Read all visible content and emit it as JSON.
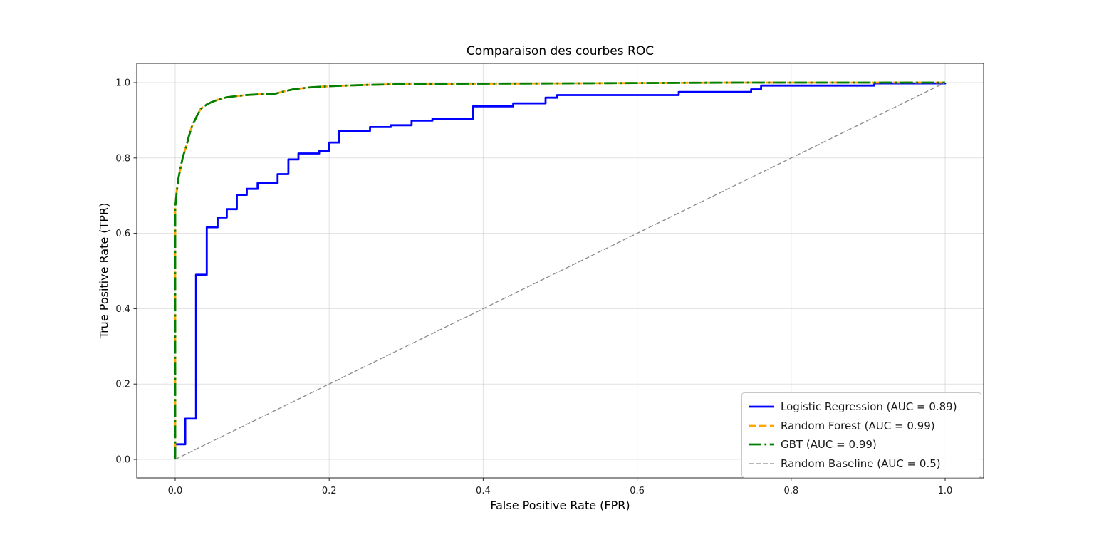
{
  "figure": {
    "title": "Comparaison des courbes ROC",
    "xlabel": "False Positive Rate (FPR)",
    "ylabel": "True Positive Rate (TPR)"
  },
  "chart_data": {
    "type": "line",
    "title": "Comparaison des courbes ROC",
    "xlabel": "False Positive Rate (FPR)",
    "ylabel": "True Positive Rate (TPR)",
    "xlim": [
      -0.05,
      1.05
    ],
    "ylim": [
      -0.05,
      1.05
    ],
    "xticks": [
      "0.0",
      "0.2",
      "0.4",
      "0.6",
      "0.8",
      "1.0"
    ],
    "yticks": [
      "0.0",
      "0.2",
      "0.4",
      "0.6",
      "0.8",
      "1.0"
    ],
    "grid": true,
    "legend_position": "lower right",
    "series": [
      {
        "name": "Logistic Regression (AUC = 0.89)",
        "color": "#0000ff",
        "linestyle": "solid",
        "width": 2.8,
        "points": [
          [
            0,
            0
          ],
          [
            0,
            0.04
          ],
          [
            0.013,
            0.04
          ],
          [
            0.013,
            0.108
          ],
          [
            0.027,
            0.108
          ],
          [
            0.027,
            0.49
          ],
          [
            0.041,
            0.49
          ],
          [
            0.041,
            0.616
          ],
          [
            0.055,
            0.616
          ],
          [
            0.055,
            0.642
          ],
          [
            0.067,
            0.642
          ],
          [
            0.067,
            0.664
          ],
          [
            0.08,
            0.664
          ],
          [
            0.08,
            0.702
          ],
          [
            0.093,
            0.702
          ],
          [
            0.093,
            0.718
          ],
          [
            0.107,
            0.718
          ],
          [
            0.107,
            0.733
          ],
          [
            0.133,
            0.733
          ],
          [
            0.133,
            0.757
          ],
          [
            0.147,
            0.757
          ],
          [
            0.147,
            0.796
          ],
          [
            0.16,
            0.796
          ],
          [
            0.16,
            0.812
          ],
          [
            0.187,
            0.812
          ],
          [
            0.187,
            0.818
          ],
          [
            0.2,
            0.818
          ],
          [
            0.2,
            0.841
          ],
          [
            0.213,
            0.841
          ],
          [
            0.213,
            0.872
          ],
          [
            0.253,
            0.872
          ],
          [
            0.253,
            0.882
          ],
          [
            0.28,
            0.882
          ],
          [
            0.28,
            0.887
          ],
          [
            0.307,
            0.887
          ],
          [
            0.307,
            0.899
          ],
          [
            0.334,
            0.899
          ],
          [
            0.334,
            0.904
          ],
          [
            0.387,
            0.904
          ],
          [
            0.387,
            0.937
          ],
          [
            0.439,
            0.937
          ],
          [
            0.439,
            0.945
          ],
          [
            0.481,
            0.945
          ],
          [
            0.481,
            0.96
          ],
          [
            0.496,
            0.96
          ],
          [
            0.496,
            0.967
          ],
          [
            0.654,
            0.967
          ],
          [
            0.654,
            0.975
          ],
          [
            0.748,
            0.975
          ],
          [
            0.748,
            0.982
          ],
          [
            0.761,
            0.982
          ],
          [
            0.761,
            0.992
          ],
          [
            0.908,
            0.992
          ],
          [
            0.908,
            0.998
          ],
          [
            1,
            0.998
          ],
          [
            1,
            1
          ]
        ]
      },
      {
        "name": "Random Forest (AUC = 0.99)",
        "color": "#ffa500",
        "linestyle": "dashed",
        "width": 2.8,
        "points": [
          [
            0,
            0
          ],
          [
            0,
            0.668
          ],
          [
            0.002,
            0.712
          ],
          [
            0.004,
            0.744
          ],
          [
            0.007,
            0.775
          ],
          [
            0.01,
            0.803
          ],
          [
            0.015,
            0.835
          ],
          [
            0.018,
            0.86
          ],
          [
            0.022,
            0.885
          ],
          [
            0.028,
            0.911
          ],
          [
            0.033,
            0.93
          ],
          [
            0.041,
            0.942
          ],
          [
            0.047,
            0.948
          ],
          [
            0.056,
            0.955
          ],
          [
            0.067,
            0.961
          ],
          [
            0.079,
            0.964
          ],
          [
            0.092,
            0.967
          ],
          [
            0.11,
            0.969
          ],
          [
            0.129,
            0.97
          ],
          [
            0.138,
            0.975
          ],
          [
            0.153,
            0.982
          ],
          [
            0.173,
            0.987
          ],
          [
            0.204,
            0.991
          ],
          [
            0.25,
            0.994
          ],
          [
            0.3,
            0.996
          ],
          [
            0.36,
            0.997
          ],
          [
            0.5,
            0.998
          ],
          [
            0.73,
            1
          ],
          [
            1,
            1
          ]
        ]
      },
      {
        "name": "GBT (AUC = 0.99)",
        "color": "#008000",
        "linestyle": "dashdot",
        "width": 2.8,
        "points": [
          [
            0,
            0
          ],
          [
            0,
            0.668
          ],
          [
            0.002,
            0.712
          ],
          [
            0.004,
            0.744
          ],
          [
            0.007,
            0.775
          ],
          [
            0.01,
            0.803
          ],
          [
            0.015,
            0.835
          ],
          [
            0.018,
            0.86
          ],
          [
            0.022,
            0.885
          ],
          [
            0.028,
            0.911
          ],
          [
            0.033,
            0.93
          ],
          [
            0.041,
            0.942
          ],
          [
            0.047,
            0.948
          ],
          [
            0.056,
            0.955
          ],
          [
            0.067,
            0.961
          ],
          [
            0.079,
            0.964
          ],
          [
            0.092,
            0.967
          ],
          [
            0.11,
            0.969
          ],
          [
            0.129,
            0.97
          ],
          [
            0.138,
            0.975
          ],
          [
            0.153,
            0.982
          ],
          [
            0.173,
            0.987
          ],
          [
            0.204,
            0.991
          ],
          [
            0.25,
            0.994
          ],
          [
            0.3,
            0.996
          ],
          [
            0.36,
            0.997
          ],
          [
            0.5,
            0.998
          ],
          [
            0.73,
            1
          ],
          [
            1,
            1
          ]
        ]
      },
      {
        "name": "Random Baseline (AUC = 0.5)",
        "color": "#8a8a8a",
        "linestyle": "dashed",
        "width": 1.3,
        "points": [
          [
            0,
            0
          ],
          [
            1,
            1
          ]
        ]
      }
    ]
  }
}
